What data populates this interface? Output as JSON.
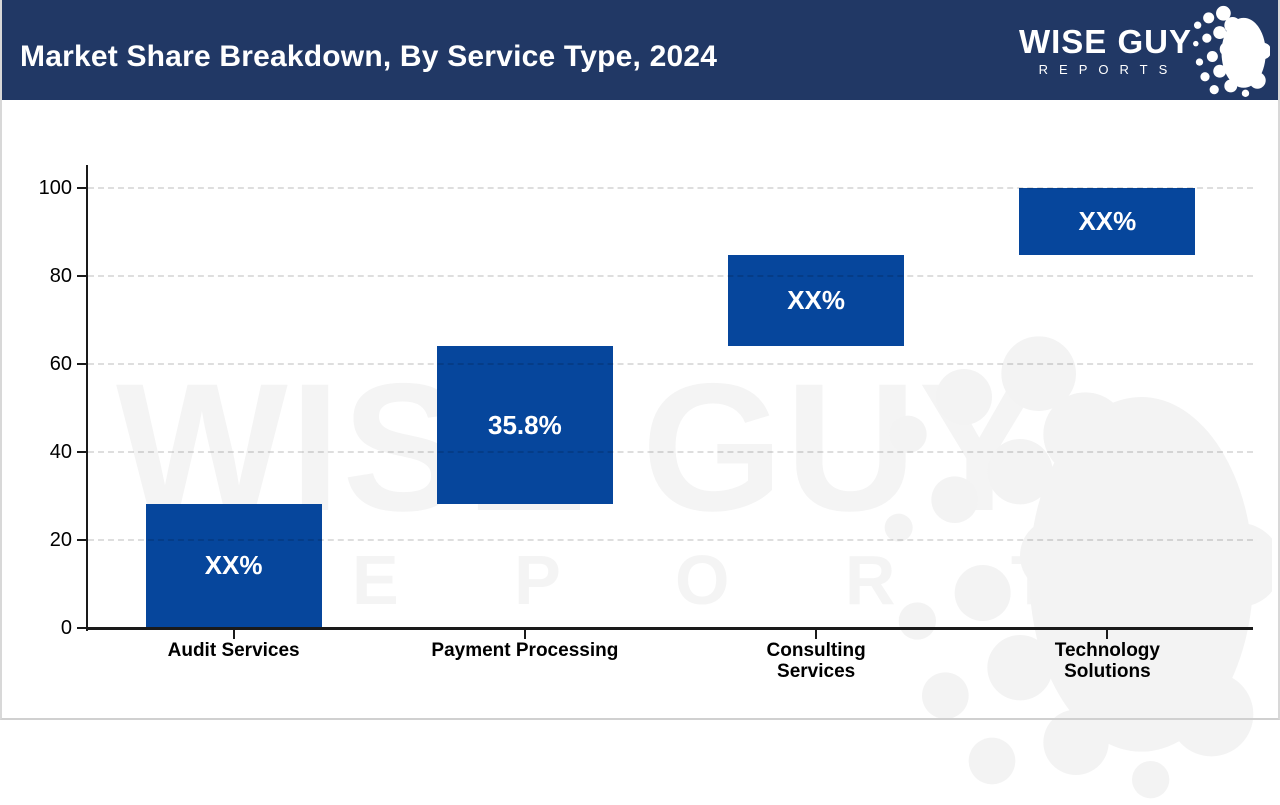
{
  "header": {
    "title": "Market Share Breakdown, By Service Type, 2024",
    "logo": {
      "wordmark": "WISE GUY",
      "subtext": "REPORTS"
    }
  },
  "watermark": {
    "wordmark": "WISE GUY",
    "subtext": "R E P O R T S"
  },
  "colors": {
    "header_bg": "#213865",
    "bar": "#06469C",
    "bar_label_text": "#ffffff",
    "axis": "#1a1a1a",
    "grid": "#d9d9d9",
    "watermark": "#f4f4f4"
  },
  "chart_data": {
    "type": "bar",
    "subtype": "waterfall-floating-bars",
    "title": "Market Share Breakdown, By Service Type, 2024",
    "xlabel": "",
    "ylabel": "",
    "ylim": [
      0,
      100
    ],
    "yticks": [
      0,
      20,
      40,
      60,
      80,
      100
    ],
    "grid": "horizontal-dashed",
    "legend": "none",
    "categories": [
      "Audit Services",
      "Payment Processing",
      "Consulting\nServices",
      "Technology\nSolutions"
    ],
    "segments": [
      {
        "category": "Audit Services",
        "start": 0,
        "end": 28.2,
        "value": 28.2,
        "value_label": "XX%"
      },
      {
        "category": "Payment Processing",
        "start": 28.2,
        "end": 64.0,
        "value": 35.8,
        "value_label": "35.8%"
      },
      {
        "category": "Consulting Services",
        "start": 64.0,
        "end": 84.8,
        "value": 20.8,
        "value_label": "XX%"
      },
      {
        "category": "Technology Solutions",
        "start": 84.8,
        "end": 100,
        "value": 15.2,
        "value_label": "XX%"
      }
    ]
  }
}
